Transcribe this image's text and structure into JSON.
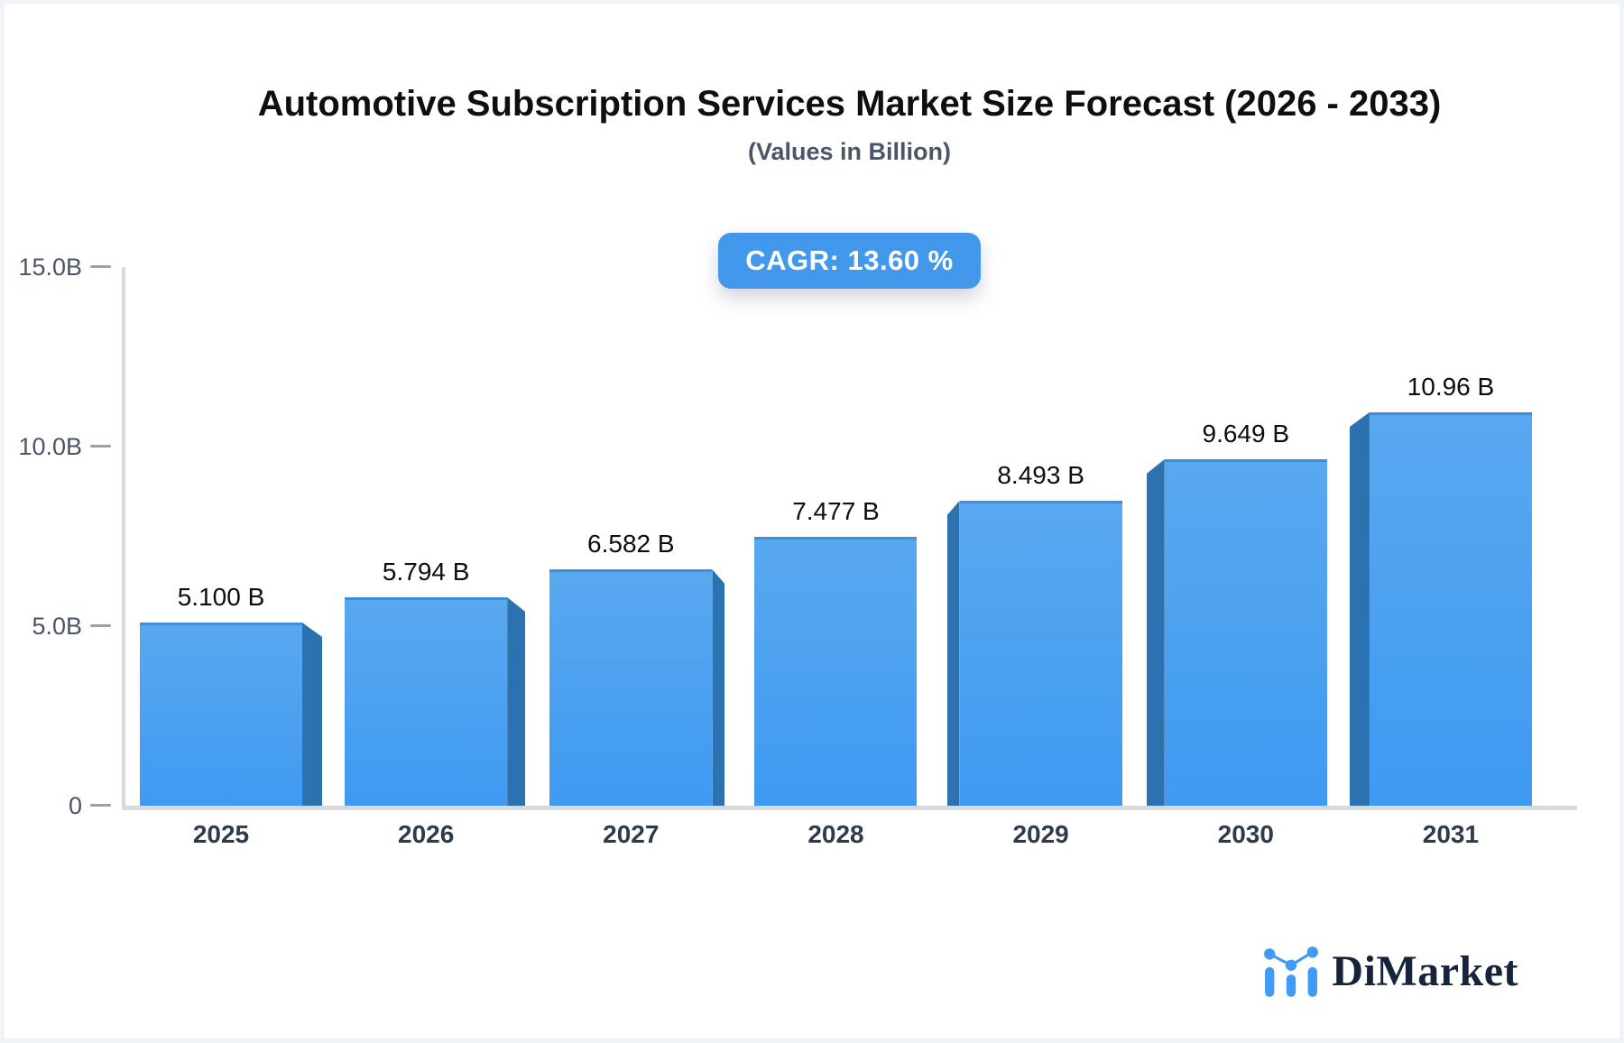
{
  "title": "Automotive Subscription Services Market Size Forecast (2026 - 2033)",
  "subtitle": "(Values in Billion)",
  "badge": {
    "label": "CAGR: 13.60 %"
  },
  "chart_data": {
    "type": "bar",
    "title": "Automotive Subscription Services Market Size Forecast (2026 - 2033)",
    "subtitle": "(Values in Billion)",
    "categories": [
      "2025",
      "2026",
      "2027",
      "2028",
      "2029",
      "2030",
      "2031"
    ],
    "values": [
      5.1,
      5.794,
      6.582,
      7.477,
      8.493,
      9.649,
      10.96
    ],
    "value_labels": [
      "5.100 B",
      "5.794 B",
      "6.582 B",
      "7.477 B",
      "8.493 B",
      "9.649 B",
      "10.96 B"
    ],
    "xlabel": "",
    "ylabel": "",
    "ylim": [
      0,
      15
    ],
    "yticks": [
      {
        "value": 15,
        "label": "15.0B"
      },
      {
        "value": 10,
        "label": "10.0B"
      },
      {
        "value": 5,
        "label": "5.0B"
      },
      {
        "value": 0,
        "label": "0"
      }
    ],
    "grid": false,
    "legend": false,
    "bar_color_top": "#58a8ef",
    "bar_color_bottom": "#3f9af2",
    "bar_top_edge": "#3e8ede",
    "bar_side_color": "#2c72b0"
  },
  "brand": {
    "name": "DiMarket",
    "icon": "bar-line-chart-icon",
    "icon_color": "#3f9bf5",
    "text_color": "#16233c"
  },
  "colors": {
    "badge_bg": "#4298eb",
    "badge_text": "#ffffff",
    "axis_line": "#d6d9de",
    "tick_dash": "#9aa1ac",
    "y_label": "#4a5568",
    "x_label": "#2e3a4d",
    "value_label": "#0d0d0d",
    "frame": "#f0f3f7"
  }
}
